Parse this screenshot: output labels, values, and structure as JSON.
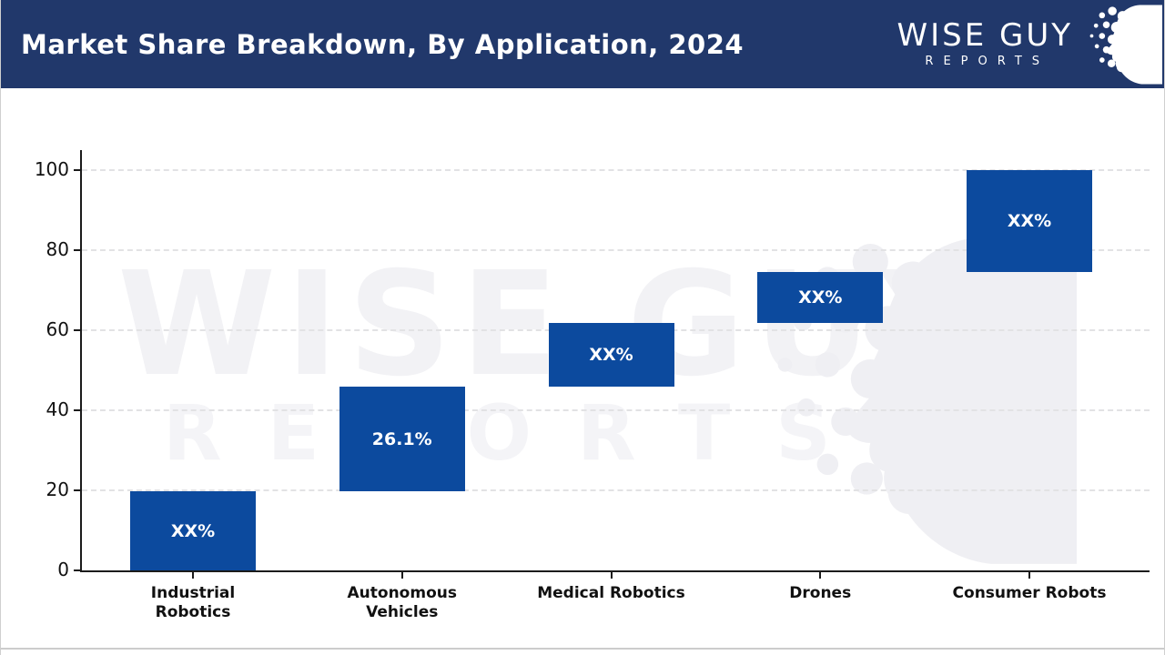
{
  "header": {
    "title": "Market Share Breakdown, By Application, 2024",
    "logo": {
      "line1": "WISE GUY",
      "line2": "REPORTS"
    }
  },
  "watermark": {
    "line1": "WISE GUY",
    "line2": "REPORTS"
  },
  "colors": {
    "header_bg": "#21386b",
    "bar": "#0c4a9e",
    "axis": "#1b1b1b",
    "gridline": "#e2e2e4",
    "title_text": "#ffffff",
    "bar_label_text": "#ffffff",
    "tick_text": "#111111",
    "watermark": "#f2f2f5"
  },
  "chart_data": {
    "type": "bar",
    "subtype": "floating-waterfall",
    "title": "Market Share Breakdown, By Application, 2024",
    "xlabel": "",
    "ylabel": "",
    "ylim": [
      0,
      100
    ],
    "yticks": [
      0,
      20,
      40,
      60,
      80,
      100
    ],
    "grid": "horizontal-dashed",
    "legend": "none",
    "categories": [
      "Industrial Robotics",
      "Autonomous Vehicles",
      "Medical Robotics",
      "Drones",
      "Consumer Robots"
    ],
    "bars": [
      {
        "category": "Industrial Robotics",
        "label_lines": [
          "Industrial",
          "Robotics"
        ],
        "start": 0,
        "end": 19.7,
        "data_label": "XX%"
      },
      {
        "category": "Autonomous Vehicles",
        "label_lines": [
          "Autonomous",
          "Vehicles"
        ],
        "start": 19.7,
        "end": 45.8,
        "data_label": "26.1%"
      },
      {
        "category": "Medical Robotics",
        "label_lines": [
          "Medical Robotics"
        ],
        "start": 45.8,
        "end": 61.9,
        "data_label": "XX%"
      },
      {
        "category": "Drones",
        "label_lines": [
          "Drones"
        ],
        "start": 61.9,
        "end": 74.5,
        "data_label": "XX%"
      },
      {
        "category": "Consumer Robots",
        "label_lines": [
          "Consumer Robots"
        ],
        "start": 74.5,
        "end": 100,
        "data_label": "XX%"
      }
    ]
  }
}
